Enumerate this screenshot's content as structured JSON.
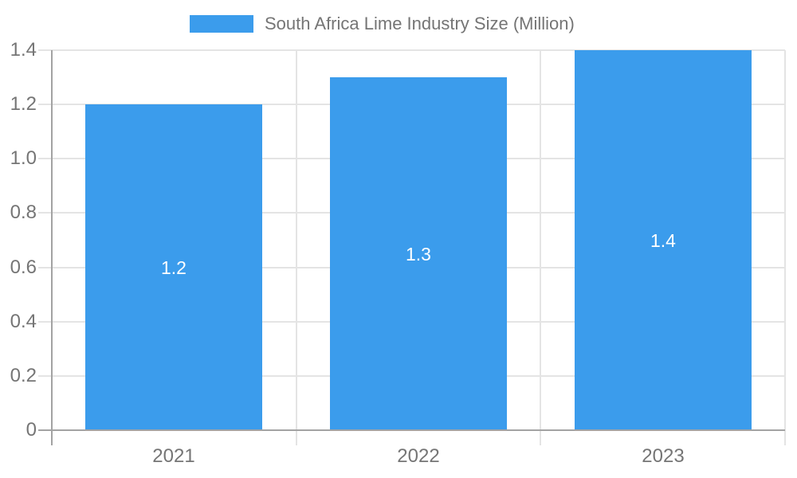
{
  "legend": {
    "label": "South Africa Lime Industry Size (Million)"
  },
  "chart_data": {
    "type": "bar",
    "title": "South Africa Lime Industry Size (Million)",
    "categories": [
      "2021",
      "2022",
      "2023"
    ],
    "values": [
      1.2,
      1.3,
      1.4
    ],
    "value_labels": [
      "1.2",
      "1.3",
      "1.4"
    ],
    "xlabel": "",
    "ylabel": "",
    "ylim": [
      0,
      1.4
    ],
    "yticks": [
      0,
      0.2,
      0.4,
      0.6,
      0.8,
      1.0,
      1.2,
      1.4
    ],
    "ytick_labels": [
      "0",
      "0.2",
      "0.4",
      "0.6",
      "0.8",
      "1.0",
      "1.2",
      "1.4"
    ],
    "grid": true,
    "legend_position": "top-center",
    "colors": {
      "bar": "#3B9CEC",
      "grid_line": "#E4E4E4",
      "axis_line": "#A3A3A3",
      "tick_text": "#757575",
      "value_label_text": "#FFFFFF",
      "background": "#FFFFFF"
    }
  }
}
